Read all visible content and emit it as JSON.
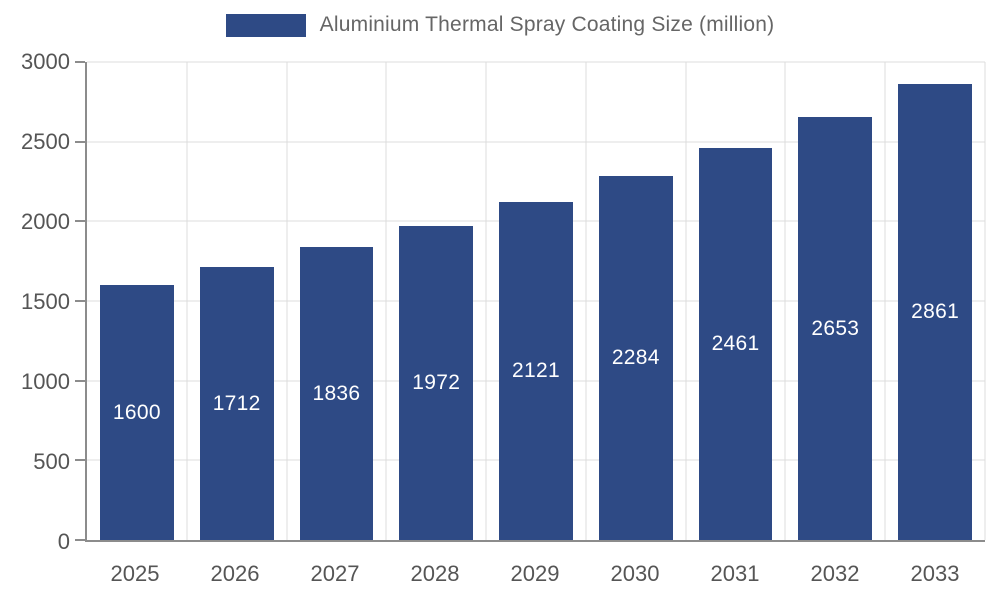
{
  "chart_data": {
    "type": "bar",
    "title": "Aluminium Thermal Spray Coating Size (million)",
    "categories": [
      "2025",
      "2026",
      "2027",
      "2028",
      "2029",
      "2030",
      "2031",
      "2032",
      "2033"
    ],
    "values": [
      1600,
      1712,
      1836,
      1972,
      2121,
      2284,
      2461,
      2653,
      2861
    ],
    "xlabel": "",
    "ylabel": "",
    "ylim": [
      0,
      3000
    ],
    "yticks": [
      0,
      500,
      1000,
      1500,
      2000,
      2500,
      3000
    ],
    "grid": true,
    "legend_position": "top",
    "bar_color": "#2e4a85",
    "value_label_color": "#ffffff",
    "axis_color": "#8c8c8c",
    "grid_color": "#dcdcdc",
    "tick_label_color": "#555555",
    "legend_text_color": "#666666"
  },
  "legend": {
    "label": "Aluminium Thermal Spray Coating Size (million)"
  }
}
